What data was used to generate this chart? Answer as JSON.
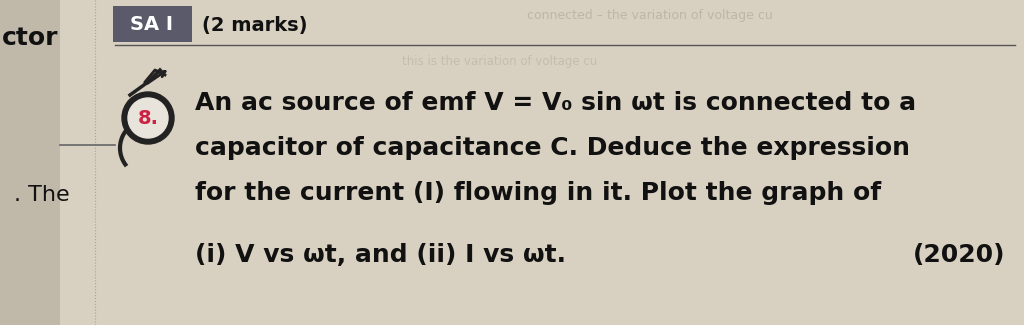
{
  "bg_color": "#d8d0c0",
  "left_strip_color": "#c0b8a8",
  "main_area_color": "#e8e4dc",
  "sa1_box_color": "#5a5a6a",
  "sa1_text": "SA I",
  "marks_text": "(2 marks)",
  "question_number": "8.",
  "main_text_line1": "An ac source of emf V = V₀ sin ωt is connected to a",
  "main_text_line2": "capacitor of capacitance C. Deduce the expression",
  "main_text_line3": "for the current (I) flowing in it. Plot the graph of",
  "main_text_line4": "(i) V vs ωt, and (ii) I vs ωt.",
  "year_text": "(2020)",
  "left_text1": "ctor",
  "left_text2": ". The",
  "header_line_color": "#555555",
  "text_color": "#111111",
  "faint_text_color": "#a8a090",
  "circle_color": "#222222",
  "number_color": "#cc2244",
  "body_font_size": 18,
  "header_font_size": 15,
  "fig_width": 10.24,
  "fig_height": 3.25,
  "dpi": 100
}
